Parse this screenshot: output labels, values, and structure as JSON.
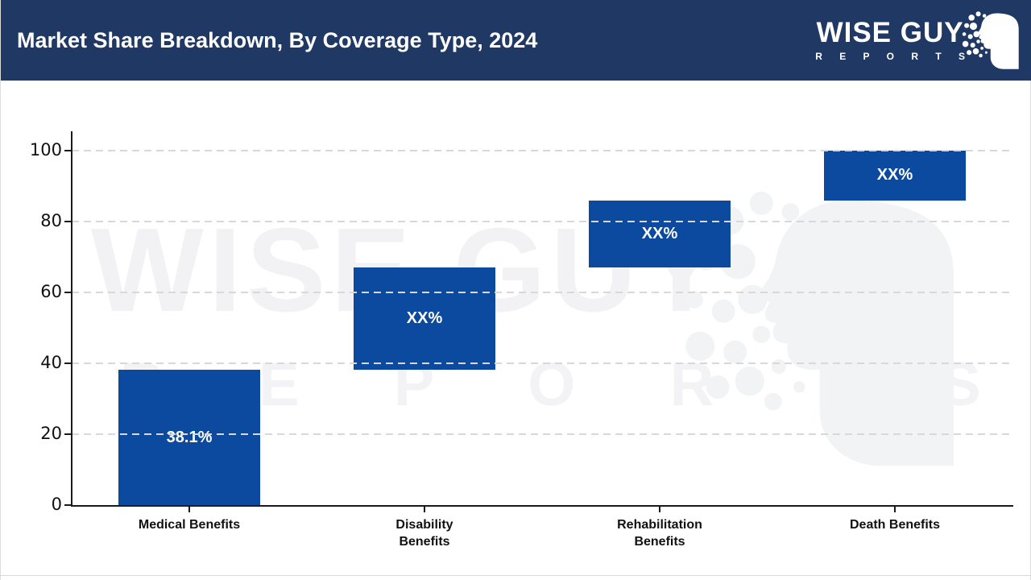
{
  "header": {
    "title": "Market Share Breakdown, By Coverage Type, 2024",
    "bg_color": "#1f3864",
    "logo": {
      "line1": "WISE GUY",
      "line2": "R E P O R T S"
    }
  },
  "watermark": {
    "line1": "WISE GUY",
    "line2": "R E P O R T S"
  },
  "chart_data": {
    "type": "bar",
    "subtype": "floating-segment-breakdown",
    "title": "Market Share Breakdown, By Coverage Type, 2024",
    "categories": [
      "Medical Benefits",
      "Disability Benefits",
      "Rehabilitation Benefits",
      "Death Benefits"
    ],
    "category_label_lines": [
      [
        "Medical Benefits"
      ],
      [
        "Disability",
        "Benefits"
      ],
      [
        "Rehabilitation",
        "Benefits"
      ],
      [
        "Death Benefits"
      ]
    ],
    "segments": [
      {
        "category": "Medical Benefits",
        "from": 0,
        "to": 38.1,
        "label": "38.1%"
      },
      {
        "category": "Disability Benefits",
        "from": 38.1,
        "to": 67,
        "label": "XX%"
      },
      {
        "category": "Rehabilitation Benefits",
        "from": 67,
        "to": 86,
        "label": "XX%"
      },
      {
        "category": "Death Benefits",
        "from": 86,
        "to": 100,
        "label": "XX%"
      }
    ],
    "xlabel": "",
    "ylabel": "",
    "ylim": [
      0,
      100
    ],
    "yticks": [
      0,
      20,
      40,
      60,
      80,
      100
    ],
    "grid": "horizontal-dashed",
    "legend": "none",
    "bar_color": "#0b4a9f",
    "bar_label_color": "#ffffff"
  }
}
